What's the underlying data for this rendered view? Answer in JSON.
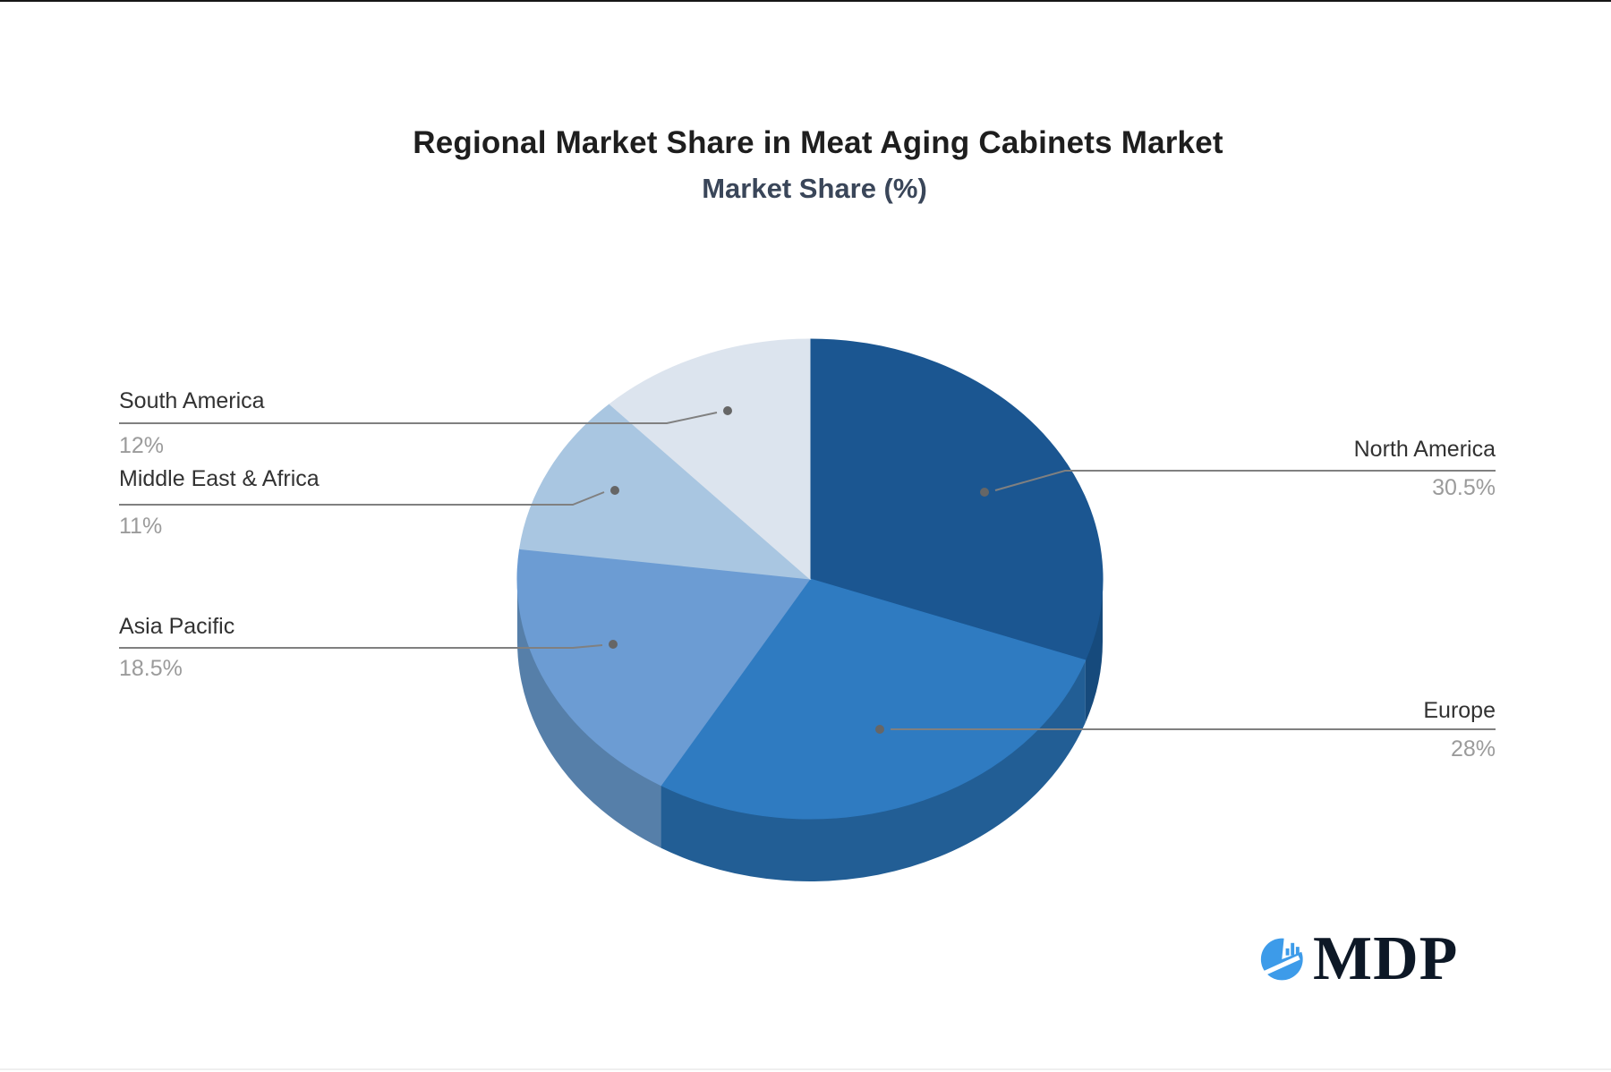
{
  "header": {
    "title": "Regional Market Share in Meat Aging Cabinets Market",
    "subtitle": "Market Share (%)"
  },
  "chart_data": {
    "type": "pie",
    "title": "Regional Market Share in Meat Aging Cabinets Market",
    "subtitle": "Market Share (%)",
    "unit": "%",
    "effect": "3d",
    "start_angle_deg": 0,
    "direction": "clockwise",
    "legend_position": "connector-labels",
    "slices": [
      {
        "label": "North America",
        "value": 30.5,
        "display": "30.5%",
        "color": "#1B5691",
        "side_color": "#164A7C"
      },
      {
        "label": "Europe",
        "value": 28,
        "display": "28%",
        "color": "#2F7BC1",
        "side_color": "#225E95"
      },
      {
        "label": "Asia Pacific",
        "value": 18.5,
        "display": "18.5%",
        "color": "#6C9CD3",
        "side_color": "#567FA9"
      },
      {
        "label": "Middle East & Africa",
        "value": 11,
        "display": "11%",
        "color": "#A9C6E1",
        "side_color": "#8FAECB"
      },
      {
        "label": "South America",
        "value": 12,
        "display": "12%",
        "color": "#DCE4EE",
        "side_color": "#BCC8D8"
      }
    ]
  },
  "connector_style": {
    "line_color": "#808080",
    "dot_color": "#666666"
  },
  "logo": {
    "text": "MDP",
    "text_color": "#0D1826",
    "icon": "pie-bar-chart-icon",
    "icon_color": "#3D9BE9"
  }
}
